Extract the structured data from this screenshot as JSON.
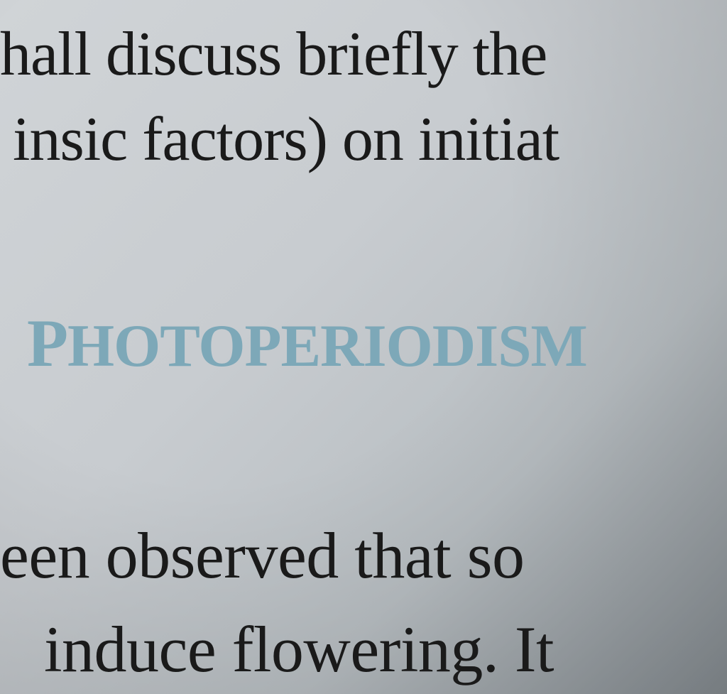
{
  "paragraph_top": {
    "line1": "hall discuss briefly the",
    "line2": "insic factors) on initiat"
  },
  "heading": {
    "text_rest": "HOTOPERIODISM",
    "first_letter": "P",
    "color": "#7da8b8",
    "fontsize_pt": 64,
    "font_weight": "bold"
  },
  "paragraph_bottom": {
    "line1": "een observed that so",
    "line2": "induce flowering. It"
  },
  "style": {
    "body_text_color": "#1a1a1a",
    "body_fontsize_pt": 66,
    "background_colors": [
      "#d0d4d7",
      "#c8ccd0",
      "#b8bec2",
      "#8a9196"
    ],
    "font_family": "Georgia, Times New Roman, serif"
  }
}
